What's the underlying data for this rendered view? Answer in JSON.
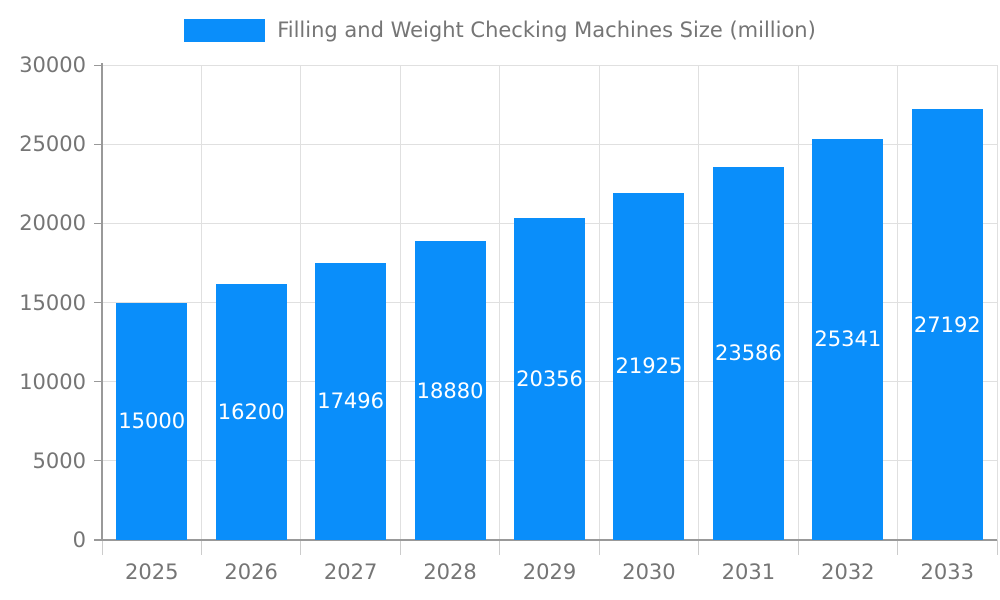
{
  "chart_data": {
    "type": "bar",
    "title": "Filling and Weight Checking Machines Size (million)",
    "categories": [
      "2025",
      "2026",
      "2027",
      "2028",
      "2029",
      "2030",
      "2031",
      "2032",
      "2033"
    ],
    "values": [
      15000,
      16200,
      17496,
      18880,
      20356,
      21925,
      23586,
      25341,
      27192
    ],
    "series": [
      {
        "name": "Filling and Weight Checking Machines Size (million)",
        "values": [
          15000,
          16200,
          17496,
          18880,
          20356,
          21925,
          23586,
          25341,
          27192
        ]
      }
    ],
    "xlabel": "",
    "ylabel": "",
    "ylim": [
      0,
      30000
    ],
    "yticks": [
      0,
      5000,
      10000,
      15000,
      20000,
      25000,
      30000
    ],
    "grid": true,
    "legend_position": "top",
    "value_labels": "inside-center-white",
    "colors": {
      "bar": "#0A8EFA",
      "value_label": "#FFFFFF",
      "axis_text": "#757575",
      "axis_line": "#999999",
      "gridline": "#E0E0E0"
    }
  }
}
